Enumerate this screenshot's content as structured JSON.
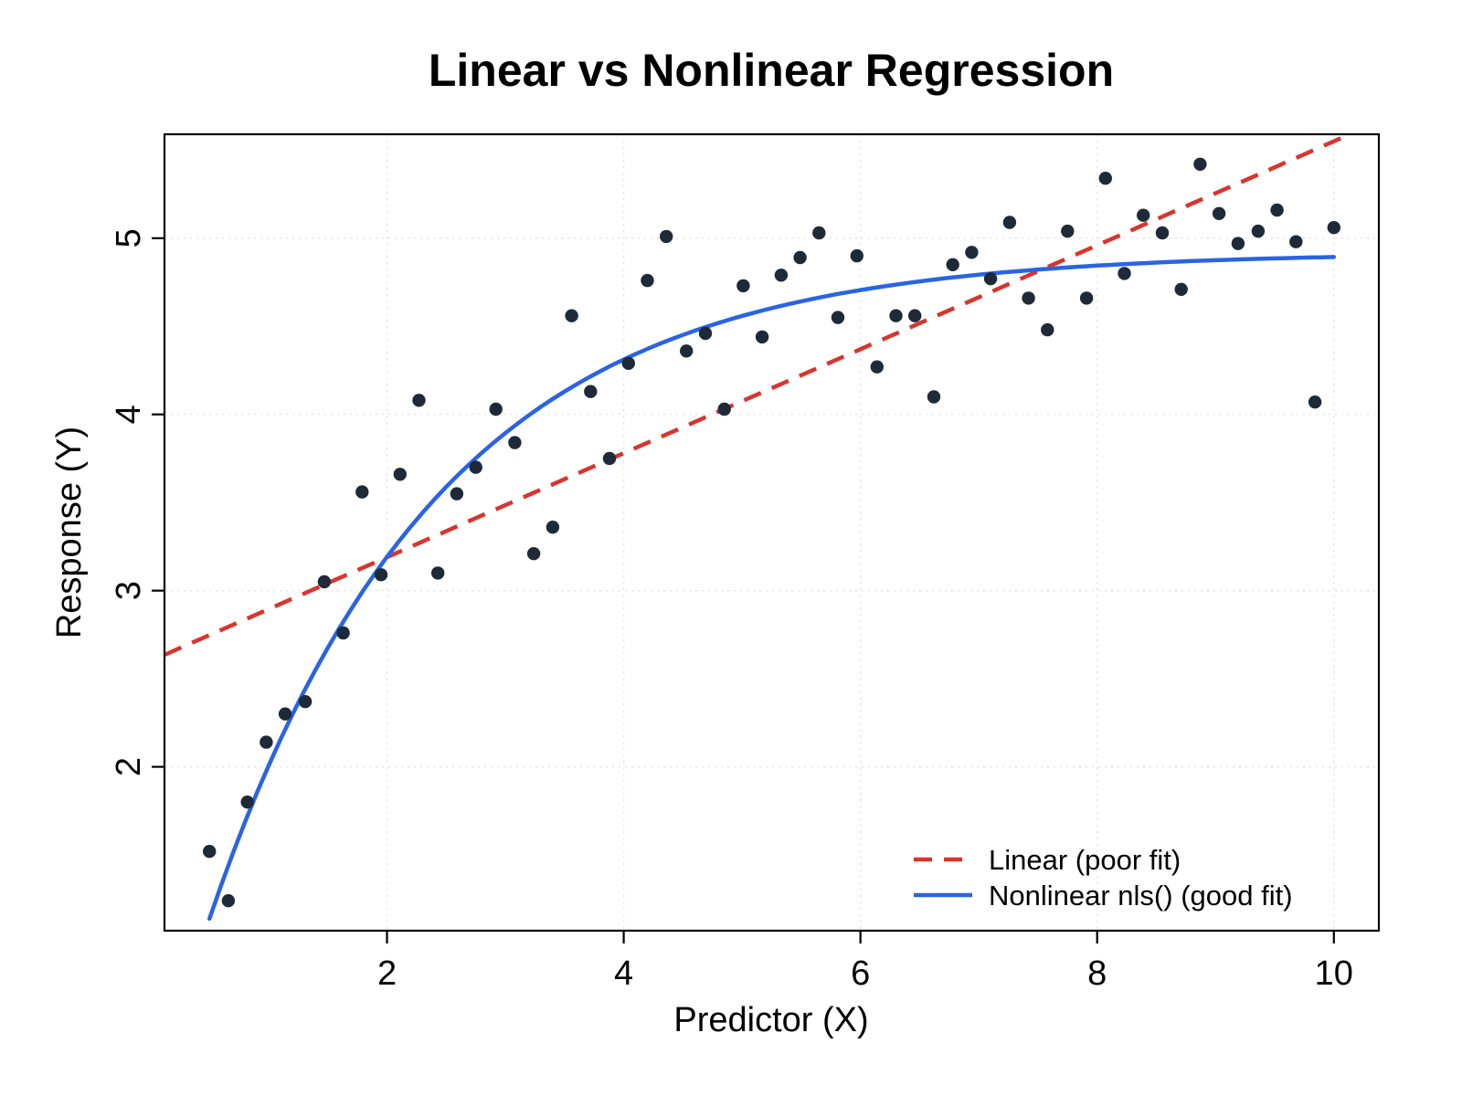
{
  "chart_data": {
    "type": "scatter",
    "title": "Linear vs Nonlinear Regression",
    "xlabel": "Predictor (X)",
    "ylabel": "Response (Y)",
    "xlim": [
      0.12,
      10.38
    ],
    "ylim": [
      1.07,
      5.59
    ],
    "x_ticks": [
      "2",
      "4",
      "6",
      "8",
      "10"
    ],
    "x_tick_values": [
      2,
      4,
      6,
      8,
      10
    ],
    "y_ticks": [
      "2",
      "3",
      "4",
      "5"
    ],
    "y_tick_values": [
      2,
      3,
      4,
      5
    ],
    "grid": {
      "visible": true,
      "style": "dotted",
      "color": "#e2e2e2",
      "at_ticks": true
    },
    "point_color": "#1e2a38",
    "point_radius": 7.2,
    "points": [
      [
        0.5,
        1.52
      ],
      [
        0.66,
        1.24
      ],
      [
        0.82,
        1.8
      ],
      [
        0.98,
        2.14
      ],
      [
        1.14,
        2.3
      ],
      [
        1.31,
        2.37
      ],
      [
        1.47,
        3.05
      ],
      [
        1.63,
        2.76
      ],
      [
        1.79,
        3.56
      ],
      [
        1.95,
        3.09
      ],
      [
        2.11,
        3.66
      ],
      [
        2.27,
        4.08
      ],
      [
        2.43,
        3.1
      ],
      [
        2.59,
        3.55
      ],
      [
        2.75,
        3.7
      ],
      [
        2.92,
        4.03
      ],
      [
        3.08,
        3.84
      ],
      [
        3.24,
        3.21
      ],
      [
        3.4,
        3.36
      ],
      [
        3.56,
        4.56
      ],
      [
        3.72,
        4.13
      ],
      [
        3.88,
        3.75
      ],
      [
        4.04,
        4.29
      ],
      [
        4.2,
        4.76
      ],
      [
        4.36,
        5.01
      ],
      [
        4.53,
        4.36
      ],
      [
        4.69,
        4.46
      ],
      [
        4.85,
        4.03
      ],
      [
        5.01,
        4.73
      ],
      [
        5.17,
        4.44
      ],
      [
        5.33,
        4.79
      ],
      [
        5.49,
        4.89
      ],
      [
        5.65,
        5.03
      ],
      [
        5.81,
        4.55
      ],
      [
        5.97,
        4.9
      ],
      [
        6.14,
        4.27
      ],
      [
        6.3,
        4.56
      ],
      [
        6.46,
        4.56
      ],
      [
        6.62,
        4.1
      ],
      [
        6.78,
        4.85
      ],
      [
        6.94,
        4.92
      ],
      [
        7.1,
        4.77
      ],
      [
        7.26,
        5.09
      ],
      [
        7.42,
        4.66
      ],
      [
        7.58,
        4.48
      ],
      [
        7.75,
        5.04
      ],
      [
        7.91,
        4.66
      ],
      [
        8.07,
        5.34
      ],
      [
        8.23,
        4.8
      ],
      [
        8.39,
        5.13
      ],
      [
        8.55,
        5.03
      ],
      [
        8.71,
        4.71
      ],
      [
        8.87,
        5.42
      ],
      [
        9.03,
        5.14
      ],
      [
        9.19,
        4.97
      ],
      [
        9.36,
        5.04
      ],
      [
        9.52,
        5.16
      ],
      [
        9.68,
        4.98
      ],
      [
        9.84,
        4.07
      ],
      [
        10.0,
        5.06
      ]
    ],
    "fits": [
      {
        "type": "linear",
        "label": "Linear (poor fit)",
        "intercept": 2.6,
        "slope": 0.295,
        "color": "#d8352f",
        "line_style": "dashed",
        "line_width": 4.5
      },
      {
        "type": "nonlinear-asymptotic",
        "label": "Nonlinear nls() (good fit)",
        "formula": "y = a - b*exp(-c*x)",
        "a": 4.92,
        "b": 4.91,
        "c": 0.522,
        "domain": [
          0.5,
          10.0
        ],
        "color": "#2a64e2",
        "line_style": "solid",
        "line_width": 4.5
      }
    ],
    "legend": {
      "position": "bottom-right",
      "border": false,
      "items": [
        {
          "label": "Linear (poor fit)",
          "color": "#d8352f",
          "style": "dashed"
        },
        {
          "label": "Nonlinear nls() (good fit)",
          "color": "#2a64e2",
          "style": "solid"
        }
      ]
    }
  }
}
